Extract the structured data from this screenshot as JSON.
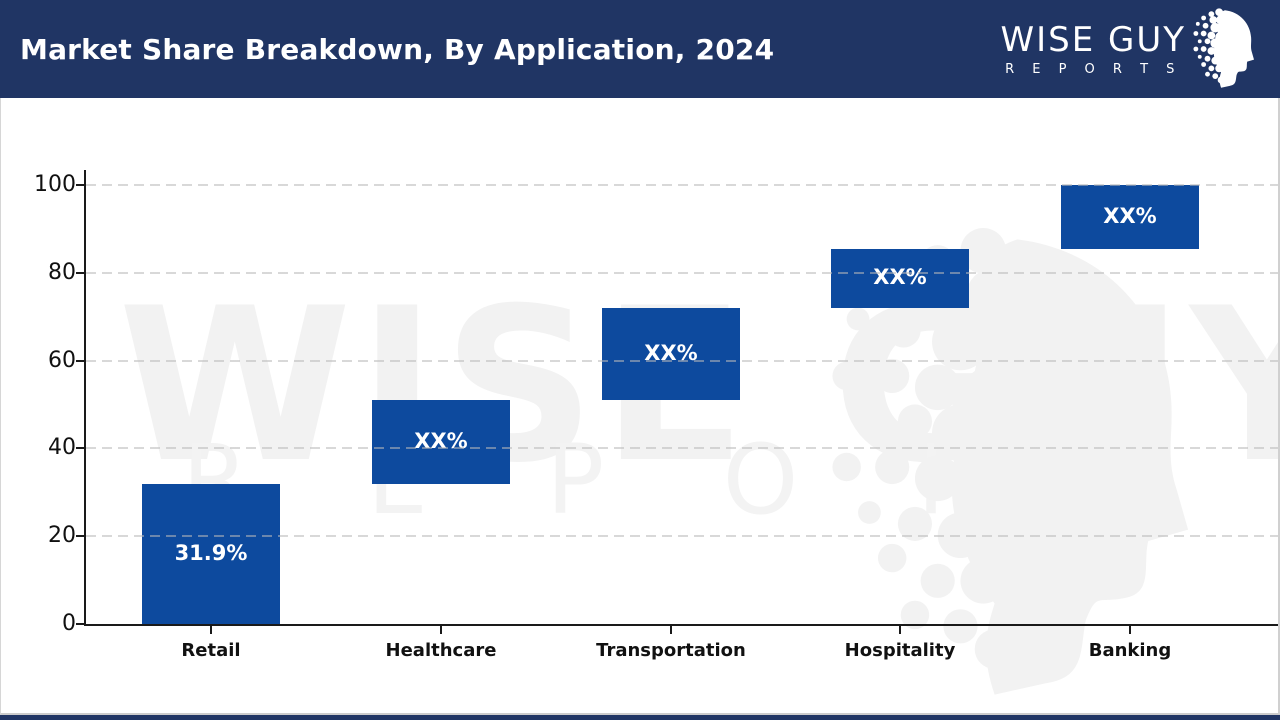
{
  "header": {
    "title": "Market Share Breakdown, By Application, 2024",
    "logo": {
      "line1": "WISE GUY",
      "line2": "R E P O R T S"
    }
  },
  "watermark": {
    "line1": "WISE GUY",
    "line2": "R E P O R T S"
  },
  "colors": {
    "header_bg": "#203564",
    "bar": "#0d4a9e",
    "axis": "#1a1a1a",
    "grid": "#bdbdbd",
    "bar_label": "#ffffff",
    "watermark": "#f2f2f2"
  },
  "chart_data": {
    "type": "bar",
    "subtype": "waterfall",
    "title": "Market Share Breakdown, By Application, 2024",
    "categories": [
      "Retail",
      "Healthcare",
      "Transportation",
      "Hospitality",
      "Banking"
    ],
    "segments": [
      {
        "category": "Retail",
        "start": 0,
        "end": 31.9,
        "label": "31.9%"
      },
      {
        "category": "Healthcare",
        "start": 31.9,
        "end": 51,
        "label": "XX%"
      },
      {
        "category": "Transportation",
        "start": 51,
        "end": 72,
        "label": "XX%"
      },
      {
        "category": "Hospitality",
        "start": 72,
        "end": 85.5,
        "label": "XX%"
      },
      {
        "category": "Banking",
        "start": 85.5,
        "end": 100,
        "label": "XX%"
      }
    ],
    "yticks": [
      0,
      20,
      40,
      60,
      80,
      100
    ],
    "ylim": [
      0,
      105
    ],
    "xlabel": "",
    "ylabel": "",
    "grid": "horizontal-dashed-over-bars",
    "legend": "none"
  }
}
